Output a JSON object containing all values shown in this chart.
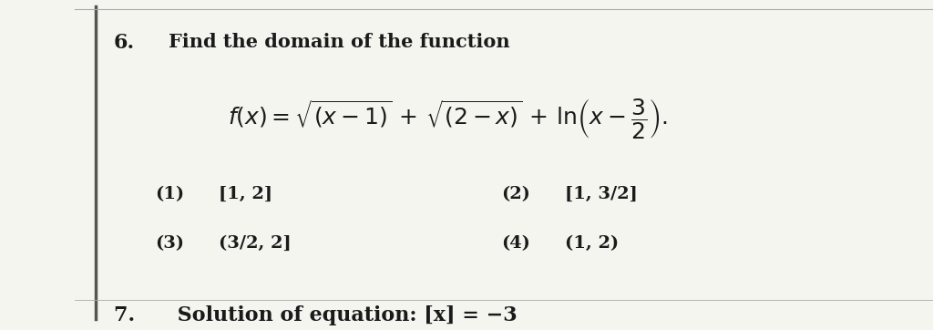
{
  "background_color": "#f5f5f0",
  "left_bar_color": "#555555",
  "top_bar_color": "#aaaaaa",
  "question_number": "6.",
  "question_text": "Find the domain of the function",
  "formula": "f(x) = \\sqrt{(x-1)} + \\sqrt{(2-x)} + \\ln\\left(x - \\dfrac{3}{2}\\right).",
  "options": [
    [
      "(1)",
      "[1, 2]"
    ],
    [
      "(2)",
      "[1, 3/2]"
    ],
    [
      "(3)",
      "(3/2, 2]"
    ],
    [
      "(4)",
      "(1, 2)"
    ]
  ],
  "footer_text": "7.      Solution of equation: [x] = −3",
  "text_color": "#1a1a1a",
  "font_size_question": 15,
  "font_size_formula": 18,
  "font_size_options": 14,
  "font_size_number": 16
}
